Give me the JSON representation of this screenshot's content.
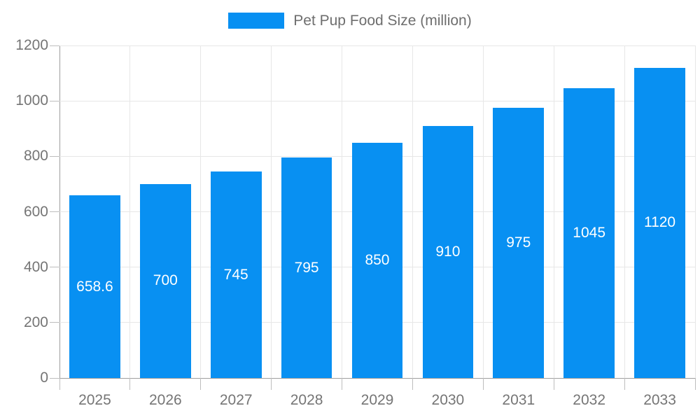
{
  "legend": {
    "label": "Pet Pup Food Size (million)"
  },
  "chart_data": {
    "type": "bar",
    "title": "Pet Pup Food Size (million)",
    "categories": [
      "2025",
      "2026",
      "2027",
      "2028",
      "2029",
      "2030",
      "2031",
      "2032",
      "2033"
    ],
    "values": [
      658.6,
      700,
      745,
      795,
      850,
      910,
      975,
      1045,
      1120
    ],
    "series": [
      {
        "name": "Pet Pup Food Size (million)",
        "values": [
          658.6,
          700,
          745,
          795,
          850,
          910,
          975,
          1045,
          1120
        ]
      }
    ],
    "xlabel": "",
    "ylabel": "",
    "ylim": [
      0,
      1200
    ],
    "yticks": [
      0,
      200,
      400,
      600,
      800,
      1000,
      1200
    ],
    "grid": true,
    "legend_position": "top-center",
    "value_labels_inside_bars": true,
    "colors": {
      "bar": "#0890f2",
      "axis_line": "#9e9e9e",
      "grid": "#e7e7e7",
      "tick": "#bdbdbd",
      "axis_text": "#757575",
      "legend_text": "#6e6e6e",
      "value_text": "#ffffff",
      "background": "#ffffff"
    }
  }
}
